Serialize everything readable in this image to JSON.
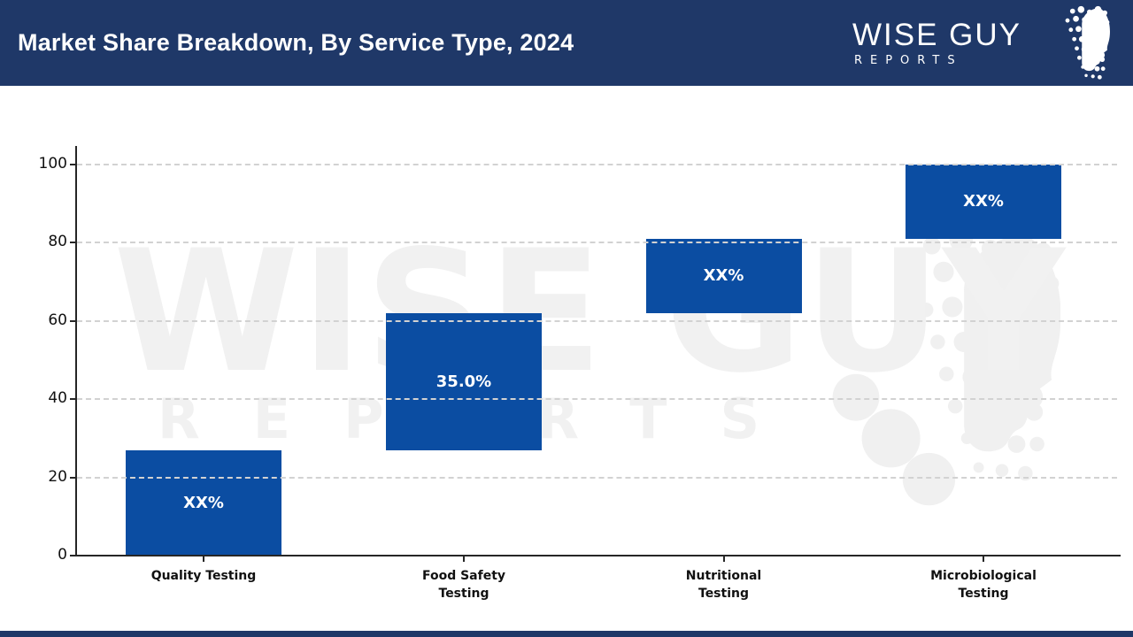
{
  "header": {
    "title": "Market Share Breakdown, By Service Type, 2024",
    "bg_color": "#1f3868",
    "logo": {
      "line1": "WISE GUY",
      "line2": "REPORTS"
    }
  },
  "watermark": {
    "line1": "WISE GUY",
    "line2": "REPORTS"
  },
  "chart_data": {
    "type": "bar",
    "subtype": "waterfall",
    "title": "Market Share Breakdown, By Service Type, 2024",
    "categories": [
      "Quality Testing",
      "Food Safety Testing",
      "Nutritional Testing",
      "Microbiological Testing"
    ],
    "bars": [
      {
        "category_lines": [
          "Quality Testing"
        ],
        "start": 0,
        "end": 27,
        "label": "XX%"
      },
      {
        "category_lines": [
          "Food Safety",
          "Testing"
        ],
        "start": 27,
        "end": 62,
        "label": "35.0%"
      },
      {
        "category_lines": [
          "Nutritional",
          "Testing"
        ],
        "start": 62,
        "end": 81,
        "label": "XX%"
      },
      {
        "category_lines": [
          "Microbiological",
          "Testing"
        ],
        "start": 81,
        "end": 100,
        "label": "XX%"
      }
    ],
    "yticks": [
      0,
      20,
      40,
      60,
      80,
      100
    ],
    "ylim": [
      0,
      100
    ],
    "xlabel": "",
    "ylabel": "",
    "bar_color": "#0b4da2",
    "grid": "horizontal-dashed",
    "legend": "none"
  },
  "footer": {
    "bg_color": "#1f3868"
  }
}
